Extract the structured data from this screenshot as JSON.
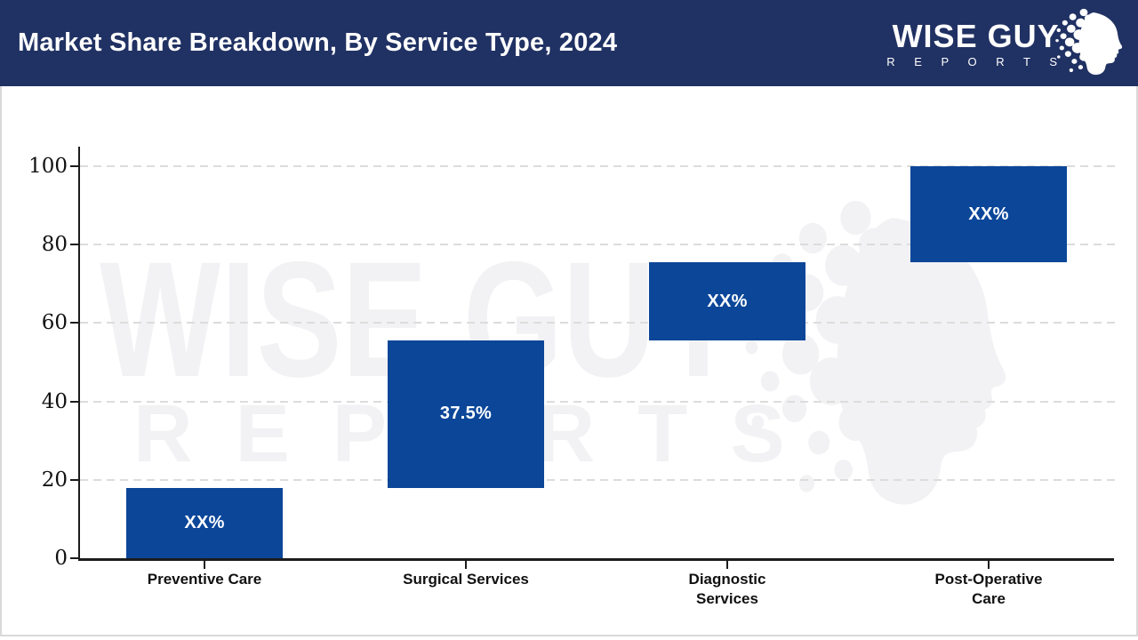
{
  "header": {
    "title": "Market Share Breakdown, By Service Type, 2024",
    "logo": {
      "line1": "WISE GUY",
      "line2": "R E P O R T S"
    }
  },
  "watermark": {
    "line1": "WISE GUY",
    "line2": "REPORTS"
  },
  "colors": {
    "header_bg": "#203163",
    "bar": "#0b4699",
    "grid": "#dcdcdc",
    "axis": "#1c1c1c",
    "watermark": "#f2f2f4"
  },
  "chart_data": {
    "type": "bar",
    "subtype": "waterfall",
    "title": "Market Share Breakdown, By Service Type, 2024",
    "categories": [
      "Preventive Care",
      "Surgical Services",
      "Diagnostic Services",
      "Post-Operative Care"
    ],
    "category_label_lines": [
      [
        "Preventive Care"
      ],
      [
        "Surgical Services"
      ],
      [
        "Diagnostic",
        "Services"
      ],
      [
        "Post-Operative",
        "Care"
      ]
    ],
    "segments": [
      {
        "category": "Preventive Care",
        "label": "XX%",
        "start": 0,
        "end": 18
      },
      {
        "category": "Surgical Services",
        "label": "37.5%",
        "start": 18,
        "end": 55.5
      },
      {
        "category": "Diagnostic Services",
        "label": "XX%",
        "start": 55.5,
        "end": 75.5
      },
      {
        "category": "Post-Operative Care",
        "label": "XX%",
        "start": 75.5,
        "end": 100
      }
    ],
    "xlabel": "",
    "ylabel": "",
    "ylim": [
      0,
      100
    ],
    "yticks": [
      0,
      20,
      40,
      60,
      80,
      100
    ],
    "grid": "horizontal-dashed",
    "legend": null,
    "bar_color": "#0b4699"
  }
}
